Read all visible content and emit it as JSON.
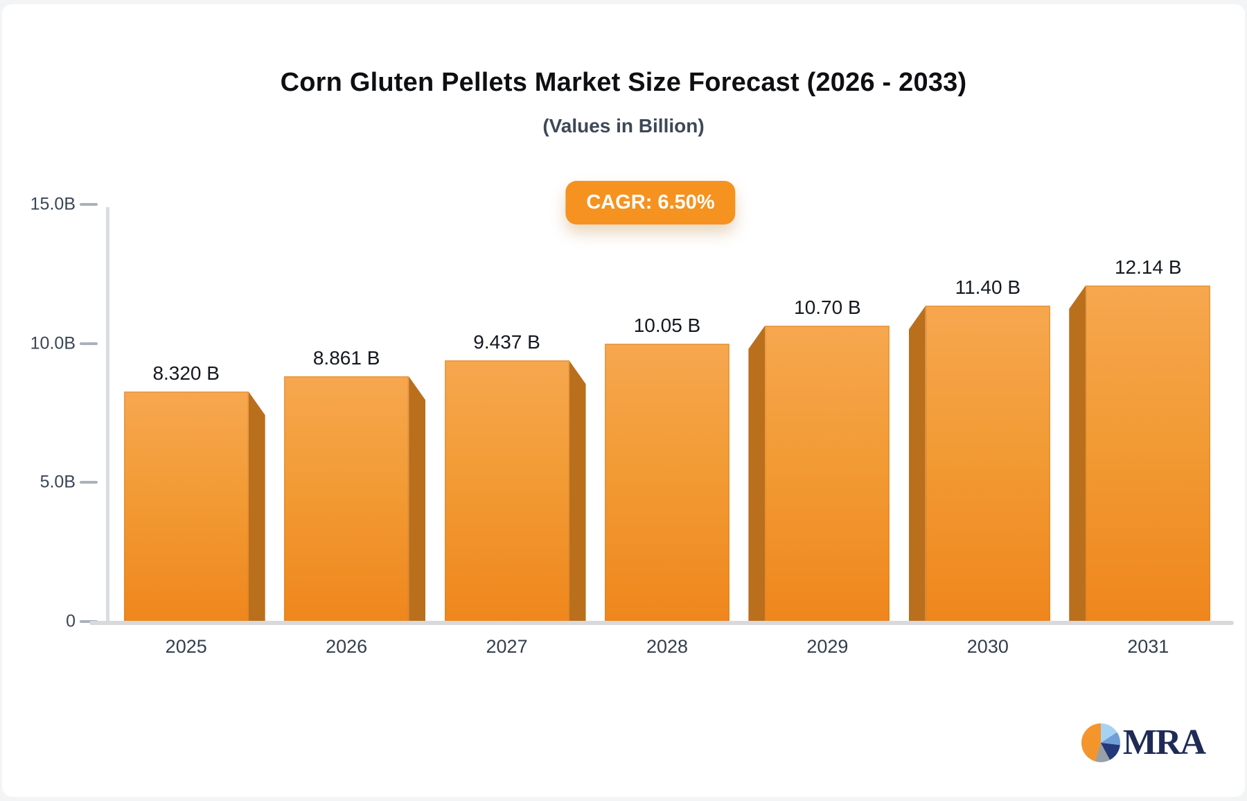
{
  "page": {
    "background": "#f2f4f6",
    "card_background": "#ffffff"
  },
  "header": {
    "title": "Corn Gluten Pellets Market Size Forecast (2026 - 2033)",
    "subtitle": "(Values in Billion)"
  },
  "badge": {
    "label": "CAGR: 6.50%",
    "background": "#f6921f",
    "text_color": "#ffffff"
  },
  "chart_data": {
    "type": "bar",
    "title": "Corn Gluten Pellets Market Size Forecast (2026 - 2033)",
    "subtitle": "(Values in Billion)",
    "annotation": "CAGR: 6.50%",
    "categories": [
      "2025",
      "2026",
      "2027",
      "2028",
      "2029",
      "2030",
      "2031"
    ],
    "values": [
      8.32,
      8.861,
      9.437,
      10.05,
      10.7,
      11.4,
      12.14
    ],
    "bar_labels": [
      "8.320 B",
      "8.861 B",
      "9.437 B",
      "10.05 B",
      "10.70 B",
      "11.40 B",
      "12.14 B"
    ],
    "xlabel": "",
    "ylabel": "",
    "ylim": [
      0,
      15
    ],
    "yticks": [
      {
        "value": 15,
        "label": "15.0B"
      },
      {
        "value": 10,
        "label": "10.0B"
      },
      {
        "value": 5,
        "label": "5.0B"
      },
      {
        "value": 0,
        "label": "0"
      }
    ],
    "grid": false,
    "legend": null,
    "bar_color_top": "#f7a74f",
    "bar_color_bottom": "#ef861c",
    "bar_side_color": "#ba6f1d",
    "perspective": "center"
  },
  "logo": {
    "text": "MRA",
    "text_color": "#1f2b56",
    "pie_colors": [
      "#f4952c",
      "#a7d3f2",
      "#6f9fd6",
      "#253879",
      "#9aa0a8"
    ]
  }
}
